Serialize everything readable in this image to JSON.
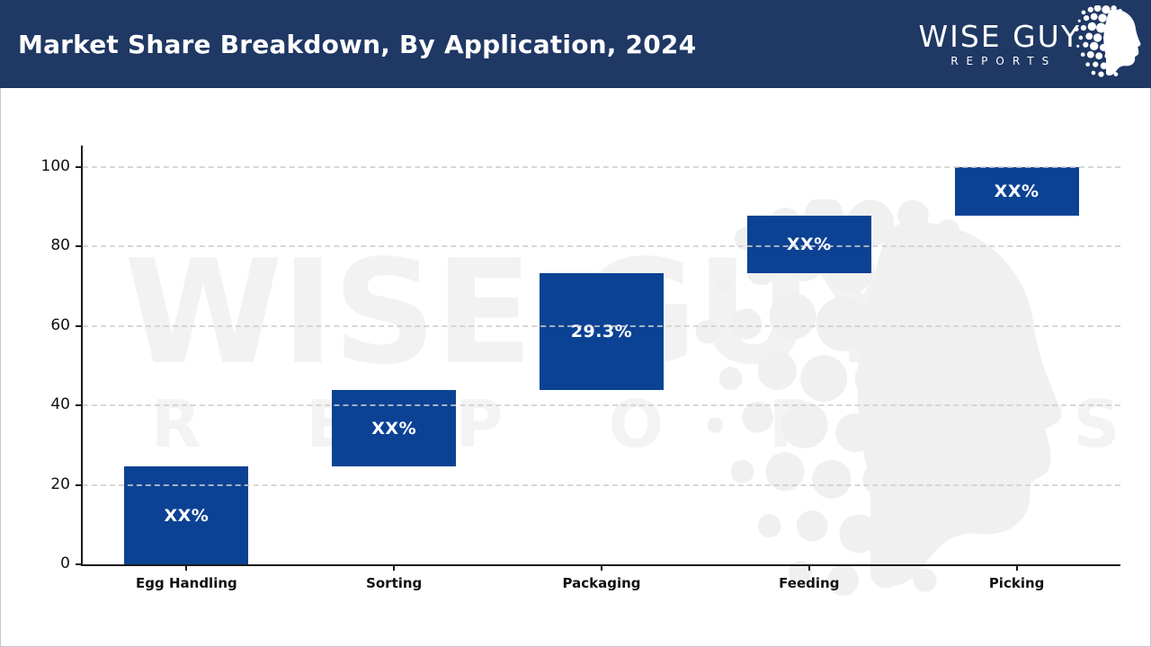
{
  "header": {
    "title": "Market Share Breakdown, By Application, 2024",
    "logo_line1": "WISE GUY",
    "logo_line2": "REPORTS",
    "bg_color": "#1F3864"
  },
  "watermark": {
    "line1": "WISE GUY",
    "line2": "REPORTS"
  },
  "chart_data": {
    "type": "bar",
    "subtype": "waterfall-floating-bars",
    "title": "Market Share Breakdown, By Application, 2024",
    "xlabel": "",
    "ylabel": "",
    "categories": [
      "Egg Handling",
      "Sorting",
      "Packaging",
      "Feeding",
      "Picking"
    ],
    "segments": [
      {
        "category": "Egg Handling",
        "start": 0,
        "end": 24.6,
        "label": "XX%"
      },
      {
        "category": "Sorting",
        "start": 24.6,
        "end": 43.9,
        "label": "XX%"
      },
      {
        "category": "Packaging",
        "start": 43.9,
        "end": 73.2,
        "label": "29.3%"
      },
      {
        "category": "Feeding",
        "start": 73.2,
        "end": 87.8,
        "label": "XX%"
      },
      {
        "category": "Picking",
        "start": 87.8,
        "end": 100,
        "label": "XX%"
      }
    ],
    "ylim": [
      0,
      100
    ],
    "yticks": [
      0,
      20,
      40,
      60,
      80,
      100
    ],
    "grid": "horizontal dashed, drawn over bars",
    "legend": "none",
    "bar_color": "#0B4294",
    "bar_label_color": "#FFFFFF",
    "axis_color": "#1A1A1A",
    "grid_color": "#D8D8D8",
    "tick_label_color": "#111111"
  }
}
